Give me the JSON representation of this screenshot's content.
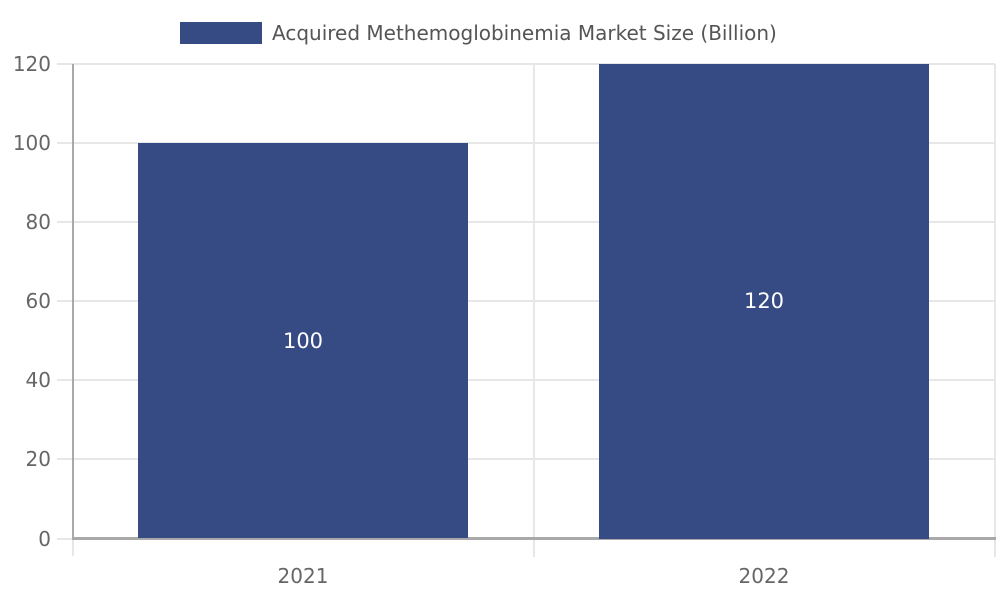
{
  "legend": {
    "label": "Acquired Methemoglobinemia Market Size (Billion)",
    "swatch_color": "#364A83"
  },
  "chart_data": {
    "type": "bar",
    "title": "",
    "categories": [
      "2021",
      "2022"
    ],
    "series": [
      {
        "name": "Acquired Methemoglobinemia Market Size (Billion)",
        "values": [
          100,
          120
        ]
      }
    ],
    "value_labels": [
      "100",
      "120"
    ],
    "xlabel": "",
    "ylabel": "",
    "ylim": [
      0,
      120
    ],
    "yticks": [
      0,
      20,
      40,
      60,
      80,
      100,
      120
    ],
    "grid": true,
    "legend_position": "top",
    "colors": {
      "bar": "#364A83",
      "grid": "#E7E7E7",
      "axis": "#A9A9A9",
      "tick_label": "#666666",
      "value_label": "#FFFFFF"
    }
  }
}
